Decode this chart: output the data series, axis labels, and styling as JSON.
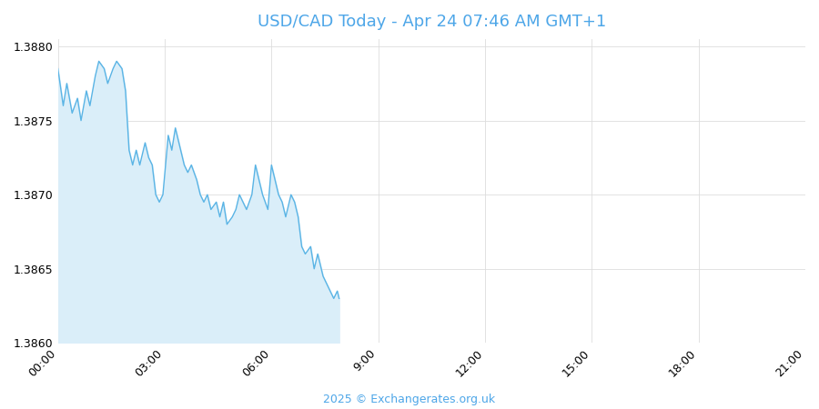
{
  "title": "USD/CAD Today - Apr 24 07:46 AM GMT+1",
  "title_color": "#4da6e8",
  "footer": "2025 © Exchangerates.org.uk",
  "footer_color": "#4da6e8",
  "xlim": [
    0,
    21.0
  ],
  "ylim": [
    1.386,
    1.38805
  ],
  "yticks": [
    1.386,
    1.3865,
    1.387,
    1.3875,
    1.388
  ],
  "xtick_labels": [
    "00:00",
    "03:00",
    "06:00",
    "9:00",
    "12:00",
    "15:00",
    "18:00",
    "21:00"
  ],
  "xtick_positions": [
    0,
    3,
    6,
    9,
    12,
    15,
    18,
    21
  ],
  "line_color": "#5ab4e5",
  "fill_color": "#daeef9",
  "background_color": "#ffffff",
  "grid_color": "#dddddd",
  "x": [
    0.0,
    0.15,
    0.25,
    0.4,
    0.55,
    0.65,
    0.8,
    0.9,
    1.05,
    1.15,
    1.3,
    1.4,
    1.55,
    1.65,
    1.8,
    1.9,
    2.0,
    2.1,
    2.2,
    2.3,
    2.45,
    2.55,
    2.65,
    2.75,
    2.85,
    2.95,
    3.1,
    3.2,
    3.3,
    3.4,
    3.55,
    3.65,
    3.75,
    3.9,
    4.0,
    4.1,
    4.2,
    4.3,
    4.45,
    4.55,
    4.65,
    4.75,
    4.9,
    5.0,
    5.1,
    5.2,
    5.3,
    5.45,
    5.55,
    5.65,
    5.75,
    5.9,
    6.0,
    6.1,
    6.2,
    6.3,
    6.4,
    6.55,
    6.65,
    6.75,
    6.85,
    6.95,
    7.1,
    7.2,
    7.3,
    7.45,
    7.55,
    7.65,
    7.75,
    7.85,
    7.9
  ],
  "y": [
    1.38785,
    1.3876,
    1.38775,
    1.38755,
    1.38765,
    1.3875,
    1.3877,
    1.3876,
    1.3878,
    1.3879,
    1.38785,
    1.38775,
    1.38785,
    1.3879,
    1.38785,
    1.3877,
    1.3873,
    1.3872,
    1.3873,
    1.3872,
    1.38735,
    1.38725,
    1.3872,
    1.387,
    1.38695,
    1.387,
    1.3874,
    1.3873,
    1.38745,
    1.38735,
    1.3872,
    1.38715,
    1.3872,
    1.3871,
    1.387,
    1.38695,
    1.387,
    1.3869,
    1.38695,
    1.38685,
    1.38695,
    1.3868,
    1.38685,
    1.3869,
    1.387,
    1.38695,
    1.3869,
    1.387,
    1.3872,
    1.3871,
    1.387,
    1.3869,
    1.3872,
    1.3871,
    1.387,
    1.38695,
    1.38685,
    1.387,
    1.38695,
    1.38685,
    1.38665,
    1.3866,
    1.38665,
    1.3865,
    1.3866,
    1.38645,
    1.3864,
    1.38635,
    1.3863,
    1.38635,
    1.3863
  ]
}
